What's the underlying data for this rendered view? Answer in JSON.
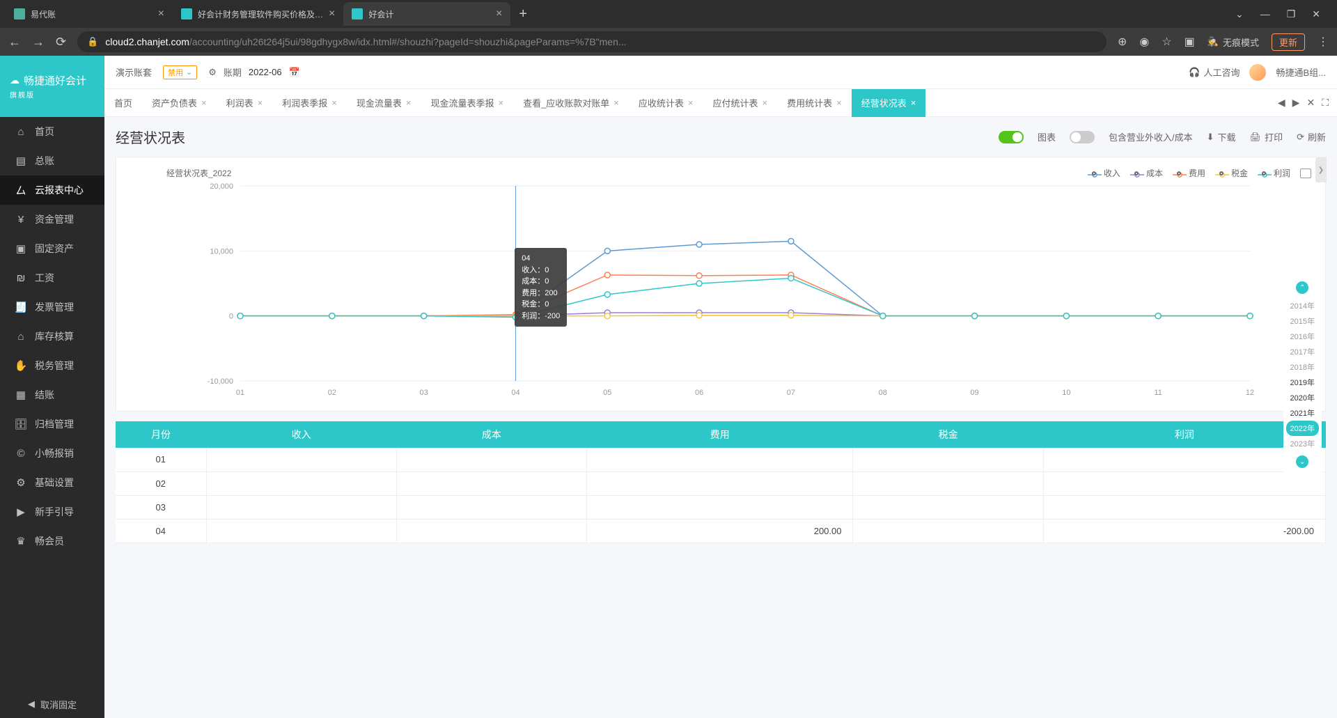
{
  "browser": {
    "tabs": [
      {
        "title": "易代账",
        "favicon": "#4caf9d"
      },
      {
        "title": "好会计财务管理软件购买价格及…",
        "favicon": "#2ec7c9"
      },
      {
        "title": "好会计",
        "favicon": "#2ec7c9",
        "active": true
      }
    ],
    "url_domain": "cloud2.chanjet.com",
    "url_path": "/accounting/uh26t264j5ui/98gdhygx8w/idx.html#/shouzhi?pageId=shouzhi&pageParams=%7B\"men...",
    "incognito": "无痕模式",
    "update": "更新"
  },
  "sidebar": {
    "logo_main": "畅捷通好会计",
    "logo_sub": "旗舰版",
    "items": [
      {
        "icon": "⌂",
        "label": "首页"
      },
      {
        "icon": "▤",
        "label": "总账"
      },
      {
        "icon": "⼛",
        "label": "云报表中心",
        "active": true
      },
      {
        "icon": "¥",
        "label": "资金管理"
      },
      {
        "icon": "▣",
        "label": "固定资产"
      },
      {
        "icon": "₪",
        "label": "工资"
      },
      {
        "icon": "🧾",
        "label": "发票管理"
      },
      {
        "icon": "⌂",
        "label": "库存核算"
      },
      {
        "icon": "✋",
        "label": "税务管理"
      },
      {
        "icon": "▦",
        "label": "结账"
      },
      {
        "icon": "🗄",
        "label": "归档管理"
      },
      {
        "icon": "©",
        "label": "小畅报销"
      },
      {
        "icon": "⚙",
        "label": "基础设置"
      },
      {
        "icon": "▶",
        "label": "新手引导"
      },
      {
        "icon": "♛",
        "label": "畅会员"
      }
    ],
    "footer": "取消固定"
  },
  "topbar": {
    "account": "演示账套",
    "disable_tag": "禁用",
    "period_label": "账期",
    "period_value": "2022-06",
    "consult": "人工咨询",
    "user": "畅捷通B组..."
  },
  "page_tabs": {
    "items": [
      {
        "label": "首页",
        "closable": false
      },
      {
        "label": "资产负债表",
        "closable": true
      },
      {
        "label": "利润表",
        "closable": true
      },
      {
        "label": "利润表季报",
        "closable": true
      },
      {
        "label": "现金流量表",
        "closable": true
      },
      {
        "label": "现金流量表季报",
        "closable": true
      },
      {
        "label": "查看_应收账款对账单",
        "closable": true
      },
      {
        "label": "应收统计表",
        "closable": true
      },
      {
        "label": "应付统计表",
        "closable": true
      },
      {
        "label": "费用统计表",
        "closable": true
      },
      {
        "label": "经营状况表",
        "closable": true,
        "active": true
      }
    ]
  },
  "page": {
    "title": "经营状况表",
    "toggle_chart": "图表",
    "toggle_extra": "包含营业外收入/成本",
    "download": "下载",
    "print": "打印",
    "refresh": "刷新"
  },
  "chart": {
    "type": "line",
    "title": "经营状况表_2022",
    "series": [
      {
        "key": "revenue",
        "name": "收入",
        "color": "#5b9bd5",
        "values": [
          0,
          0,
          0,
          0,
          10000,
          11000,
          11500,
          0,
          0,
          0,
          0,
          0
        ]
      },
      {
        "key": "cost",
        "name": "成本",
        "color": "#9c7ed6",
        "values": [
          0,
          0,
          0,
          0,
          500,
          500,
          500,
          0,
          0,
          0,
          0,
          0
        ]
      },
      {
        "key": "expense",
        "name": "费用",
        "color": "#ff7f50",
        "values": [
          0,
          0,
          0,
          200,
          6300,
          6200,
          6300,
          0,
          0,
          0,
          0,
          0
        ]
      },
      {
        "key": "tax",
        "name": "税金",
        "color": "#f5c542",
        "values": [
          0,
          0,
          0,
          0,
          0,
          100,
          100,
          0,
          0,
          0,
          0,
          0
        ]
      },
      {
        "key": "profit",
        "name": "利润",
        "color": "#2ec7c9",
        "values": [
          0,
          0,
          0,
          -200,
          3300,
          5000,
          5800,
          0,
          0,
          0,
          0,
          0
        ]
      }
    ],
    "x_labels": [
      "01",
      "02",
      "03",
      "04",
      "05",
      "06",
      "07",
      "08",
      "09",
      "10",
      "11",
      "12"
    ],
    "y_ticks": [
      -10000,
      0,
      10000,
      20000
    ],
    "y_tick_labels": [
      "-10,000",
      "0",
      "10,000",
      "20,000"
    ],
    "ylim": [
      -10000,
      20000
    ],
    "background": "#ffffff",
    "grid_color": "#eeeeee",
    "axis_color": "#cccccc",
    "line_width": 1.5,
    "marker_style": "circle",
    "marker_size": 4,
    "marker_fill": "#ffffff",
    "tooltip": {
      "x": "04",
      "lines": [
        "04",
        "收入：0",
        "成本：0",
        "费用：200",
        "税金：0",
        "利润：-200"
      ],
      "crosshair_color": "#5b9bd5"
    }
  },
  "year_rail": {
    "years": [
      "2014年",
      "2015年",
      "2016年",
      "2017年",
      "2018年",
      "2019年",
      "2020年",
      "2021年",
      "2022年",
      "2023年"
    ],
    "active": "2022年",
    "strong": [
      "2019年",
      "2020年",
      "2021年"
    ]
  },
  "table": {
    "columns": [
      "月份",
      "收入",
      "成本",
      "费用",
      "税金",
      "利润"
    ],
    "col_align": [
      "center",
      "right",
      "right",
      "right",
      "right",
      "right"
    ],
    "header_bg": "#2ec7c9",
    "header_fg": "#ffffff",
    "rows": [
      [
        "01",
        "",
        "",
        "",
        "",
        ""
      ],
      [
        "02",
        "",
        "",
        "",
        "",
        ""
      ],
      [
        "03",
        "",
        "",
        "",
        "",
        ""
      ],
      [
        "04",
        "",
        "",
        "200.00",
        "",
        "-200.00"
      ]
    ]
  }
}
